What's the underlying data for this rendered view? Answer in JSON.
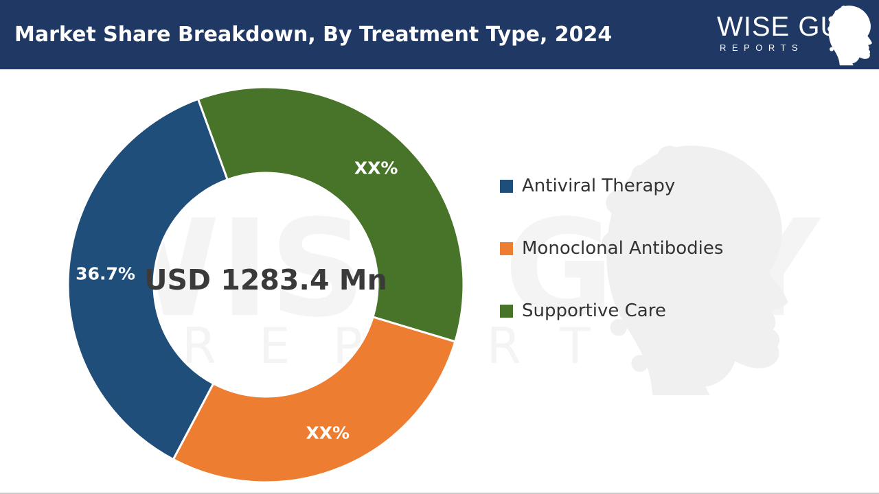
{
  "header": {
    "title": "Market Share Breakdown, By Treatment Type, 2024",
    "logo": {
      "name": "WISE GUY",
      "subtitle": "REPORTS"
    }
  },
  "watermark": {
    "line1": "WISE GUY",
    "line2": "REPORTS"
  },
  "chart_data": {
    "type": "pie",
    "subtype": "donut",
    "title": "Market Share Breakdown, By Treatment Type, 2024",
    "center_label": "USD 1283.4 Mn",
    "start_angle_deg": 110,
    "direction": "counterclockwise",
    "legend_position": "right",
    "segments": [
      {
        "label": "Antiviral Therapy",
        "color": "#1F4E7A",
        "value_pct": 36.7,
        "display_label": "36.7%"
      },
      {
        "label": "Monoclonal Antibodies",
        "color": "#ED7D31",
        "value_pct": 28.1,
        "display_label": "XX%"
      },
      {
        "label": "Supportive Care",
        "color": "#477428",
        "value_pct": 35.2,
        "display_label": "XX%"
      }
    ]
  },
  "colors": {
    "header_bg": "#1F3864",
    "center_text": "#3A3A3A",
    "legend_text": "#333333",
    "watermark": "#F4F4F4"
  }
}
